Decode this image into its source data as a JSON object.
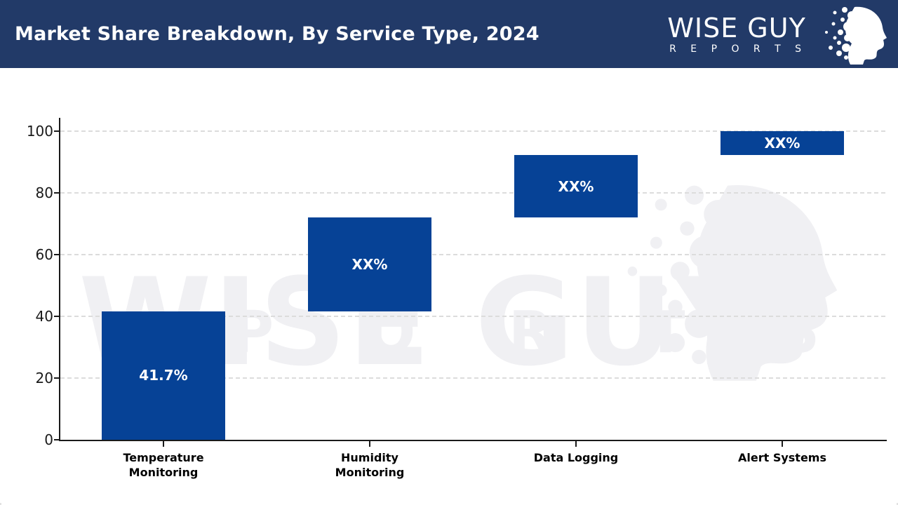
{
  "header": {
    "title": "Market Share Breakdown, By Service Type, 2024",
    "logo": {
      "line1": "WISE GUY",
      "line2": "R E P O R T S"
    }
  },
  "watermark": {
    "line1": "WISE GUY",
    "line2": "P O R T S"
  },
  "colors": {
    "header_bg": "#223a68",
    "bar": "#064296",
    "grid": "#dcdcdc",
    "axis": "#1a1a1a",
    "bar_label": "#ffffff",
    "watermark": "#f0f0f3"
  },
  "chart_data": {
    "type": "bar",
    "subtype": "waterfall-cumulative",
    "title": "Market Share Breakdown, By Service Type, 2024",
    "categories": [
      "Temperature\nMonitoring",
      "Humidity\nMonitoring",
      "Data Logging",
      "Alert Systems"
    ],
    "segments": [
      {
        "category": "Temperature Monitoring",
        "start": 0,
        "end": 41.7,
        "label": "41.7%"
      },
      {
        "category": "Humidity Monitoring",
        "start": 41.7,
        "end": 72.0,
        "label": "XX%"
      },
      {
        "category": "Data Logging",
        "start": 72.0,
        "end": 92.3,
        "label": "XX%"
      },
      {
        "category": "Alert Systems",
        "start": 92.3,
        "end": 100,
        "label": "XX%"
      }
    ],
    "xlabel": "",
    "ylabel": "",
    "ylim": [
      0,
      100
    ],
    "yticks": [
      0,
      20,
      40,
      60,
      80,
      100
    ],
    "grid": "horizontal-dashed",
    "legend": "none",
    "bar_width_fraction": 0.6
  }
}
